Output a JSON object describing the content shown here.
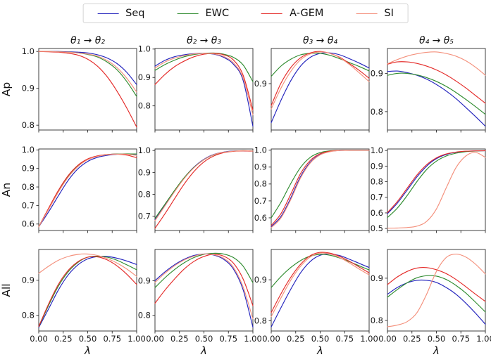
{
  "legend": {
    "items": [
      {
        "label": "Seq",
        "color": "#2323bd"
      },
      {
        "label": "EWC",
        "color": "#2e8b2e"
      },
      {
        "label": "A-GEM",
        "color": "#e42a28"
      },
      {
        "label": "SI",
        "color": "#f4907c"
      }
    ]
  },
  "chart_data": {
    "type": "line",
    "layout": "3 rows x 4 columns of subplots, shared legend on top",
    "x": [
      0,
      0.1,
      0.2,
      0.3,
      0.4,
      0.5,
      0.6,
      0.7,
      0.8,
      0.9,
      1.0
    ],
    "xticks": [
      0,
      0.25,
      0.5,
      0.75,
      1.0
    ],
    "xtick_labels": [
      "0.00",
      "0.25",
      "0.50",
      "0.75",
      "1.00"
    ],
    "xlabel": "λ",
    "row_labels": [
      "Ap",
      "An",
      "All"
    ],
    "col_titles": [
      "θ₁ → θ₂",
      "θ₂ → θ₃",
      "θ₃ → θ₄",
      "θ₄ → θ₅"
    ],
    "series_names": [
      "Seq",
      "EWC",
      "A-GEM",
      "SI"
    ],
    "subplots": [
      {
        "row": "Ap",
        "col": "θ₁ → θ₂",
        "ylim": [
          0.787,
          1.008
        ],
        "yticks": [
          0.8,
          0.9,
          1.0
        ],
        "series": {
          "Seq": [
            1.0,
            1.0,
            1.0,
            0.999,
            0.998,
            0.996,
            0.991,
            0.982,
            0.967,
            0.943,
            0.91
          ],
          "EWC": [
            1.0,
            1.0,
            0.999,
            0.998,
            0.996,
            0.992,
            0.985,
            0.971,
            0.95,
            0.918,
            0.878
          ],
          "A-GEM": [
            1.0,
            0.999,
            0.998,
            0.995,
            0.99,
            0.979,
            0.96,
            0.931,
            0.892,
            0.846,
            0.795
          ],
          "SI": [
            1.0,
            1.0,
            0.999,
            0.998,
            0.996,
            0.993,
            0.987,
            0.975,
            0.956,
            0.927,
            0.89
          ]
        }
      },
      {
        "row": "Ap",
        "col": "θ₂ → θ₃",
        "ylim": [
          0.715,
          1.002
        ],
        "yticks": [
          0.8,
          0.9,
          1.0
        ],
        "series": {
          "Seq": [
            0.94,
            0.96,
            0.973,
            0.98,
            0.984,
            0.985,
            0.982,
            0.971,
            0.947,
            0.89,
            0.728
          ],
          "EWC": [
            0.925,
            0.945,
            0.961,
            0.973,
            0.981,
            0.985,
            0.986,
            0.982,
            0.971,
            0.944,
            0.885
          ],
          "A-GEM": [
            0.875,
            0.91,
            0.938,
            0.958,
            0.973,
            0.982,
            0.985,
            0.98,
            0.962,
            0.908,
            0.785
          ],
          "SI": [
            0.933,
            0.954,
            0.968,
            0.977,
            0.983,
            0.985,
            0.983,
            0.974,
            0.952,
            0.898,
            0.768
          ]
        }
      },
      {
        "row": "Ap",
        "col": "θ₃ → θ₄",
        "ylim": [
          0.805,
          0.972
        ],
        "yticks": [
          0.9
        ],
        "series": {
          "Seq": [
            0.82,
            0.866,
            0.906,
            0.936,
            0.954,
            0.962,
            0.963,
            0.959,
            0.951,
            0.942,
            0.932
          ],
          "EWC": [
            0.915,
            0.936,
            0.95,
            0.959,
            0.962,
            0.962,
            0.958,
            0.951,
            0.943,
            0.935,
            0.926
          ],
          "A-GEM": [
            0.855,
            0.901,
            0.933,
            0.953,
            0.963,
            0.966,
            0.962,
            0.954,
            0.941,
            0.927,
            0.911
          ],
          "SI": [
            0.848,
            0.891,
            0.925,
            0.949,
            0.961,
            0.965,
            0.962,
            0.953,
            0.939,
            0.922,
            0.904
          ]
        }
      },
      {
        "row": "Ap",
        "col": "θ₄ → θ₅",
        "ylim": [
          0.752,
          0.965
        ],
        "yticks": [
          0.8,
          0.9
        ],
        "series": {
          "Seq": [
            0.905,
            0.906,
            0.902,
            0.895,
            0.885,
            0.871,
            0.854,
            0.834,
            0.811,
            0.787,
            0.762
          ],
          "EWC": [
            0.895,
            0.9,
            0.9,
            0.896,
            0.889,
            0.879,
            0.866,
            0.85,
            0.832,
            0.813,
            0.793
          ],
          "A-GEM": [
            0.924,
            0.93,
            0.93,
            0.926,
            0.919,
            0.909,
            0.896,
            0.88,
            0.862,
            0.842,
            0.822
          ],
          "SI": [
            0.925,
            0.936,
            0.945,
            0.951,
            0.955,
            0.956,
            0.952,
            0.945,
            0.933,
            0.916,
            0.895
          ]
        }
      },
      {
        "row": "An",
        "col": "θ₁ → θ₂",
        "ylim": [
          0.565,
          1.005
        ],
        "yticks": [
          0.6,
          0.7,
          0.8,
          0.9,
          1.0
        ],
        "series": {
          "Seq": [
            0.585,
            0.665,
            0.752,
            0.835,
            0.898,
            0.938,
            0.96,
            0.971,
            0.976,
            0.978,
            0.977
          ],
          "EWC": [
            0.585,
            0.683,
            0.778,
            0.858,
            0.915,
            0.95,
            0.967,
            0.975,
            0.978,
            0.979,
            0.978
          ],
          "A-GEM": [
            0.585,
            0.685,
            0.781,
            0.861,
            0.917,
            0.951,
            0.968,
            0.975,
            0.977,
            0.972,
            0.958
          ],
          "SI": [
            0.585,
            0.678,
            0.772,
            0.852,
            0.91,
            0.947,
            0.965,
            0.974,
            0.977,
            0.977,
            0.97
          ]
        }
      },
      {
        "row": "An",
        "col": "θ₂ → θ₃",
        "ylim": [
          0.635,
          1.007
        ],
        "yticks": [
          0.7,
          0.8,
          0.9,
          1.0
        ],
        "series": {
          "Seq": [
            0.685,
            0.75,
            0.815,
            0.876,
            0.925,
            0.96,
            0.982,
            0.993,
            0.998,
            0.999,
            0.998
          ],
          "EWC": [
            0.69,
            0.754,
            0.818,
            0.877,
            0.924,
            0.958,
            0.98,
            0.992,
            0.997,
            0.999,
            0.998
          ],
          "A-GEM": [
            0.645,
            0.71,
            0.78,
            0.848,
            0.905,
            0.948,
            0.975,
            0.99,
            0.996,
            0.998,
            0.997
          ],
          "SI": [
            0.68,
            0.746,
            0.812,
            0.873,
            0.922,
            0.958,
            0.981,
            0.992,
            0.997,
            0.999,
            0.998
          ]
        }
      },
      {
        "row": "An",
        "col": "θ₃ → θ₄",
        "ylim": [
          0.525,
          1.007
        ],
        "yticks": [
          0.6,
          0.7,
          0.8,
          0.9,
          1.0
        ],
        "series": {
          "Seq": [
            0.548,
            0.608,
            0.718,
            0.845,
            0.93,
            0.974,
            0.992,
            0.998,
            1.0,
            1.0,
            1.0
          ],
          "EWC": [
            0.6,
            0.693,
            0.803,
            0.898,
            0.958,
            0.986,
            0.996,
            0.999,
            1.0,
            1.0,
            1.0
          ],
          "A-GEM": [
            0.555,
            0.625,
            0.74,
            0.862,
            0.94,
            0.979,
            0.994,
            0.999,
            1.0,
            1.0,
            1.0
          ],
          "SI": [
            0.542,
            0.6,
            0.708,
            0.836,
            0.925,
            0.972,
            0.991,
            0.998,
            1.0,
            1.0,
            1.0
          ]
        }
      },
      {
        "row": "An",
        "col": "θ₄ → θ₅",
        "ylim": [
          0.487,
          1.01
        ],
        "yticks": [
          0.5,
          0.6,
          0.7,
          0.8,
          0.9,
          1.0
        ],
        "series": {
          "Seq": [
            0.595,
            0.662,
            0.745,
            0.83,
            0.9,
            0.948,
            0.975,
            0.989,
            0.995,
            0.998,
            0.999
          ],
          "EWC": [
            0.57,
            0.63,
            0.71,
            0.8,
            0.878,
            0.932,
            0.965,
            0.983,
            0.993,
            0.997,
            0.999
          ],
          "A-GEM": [
            0.602,
            0.672,
            0.757,
            0.842,
            0.909,
            0.953,
            0.978,
            0.99,
            0.996,
            0.998,
            0.999
          ],
          "SI": [
            0.502,
            0.503,
            0.506,
            0.515,
            0.545,
            0.625,
            0.76,
            0.89,
            0.965,
            0.988,
            0.956
          ]
        }
      },
      {
        "row": "All",
        "col": "θ₁ → θ₂",
        "ylim": [
          0.755,
          0.988
        ],
        "yticks": [
          0.8,
          0.9
        ],
        "series": {
          "Seq": [
            0.765,
            0.818,
            0.872,
            0.915,
            0.944,
            0.961,
            0.968,
            0.968,
            0.963,
            0.955,
            0.945
          ],
          "EWC": [
            0.767,
            0.828,
            0.883,
            0.924,
            0.951,
            0.966,
            0.969,
            0.966,
            0.957,
            0.944,
            0.93
          ],
          "A-GEM": [
            0.768,
            0.832,
            0.888,
            0.928,
            0.953,
            0.966,
            0.967,
            0.958,
            0.941,
            0.917,
            0.888
          ],
          "SI": [
            0.92,
            0.94,
            0.957,
            0.968,
            0.974,
            0.975,
            0.971,
            0.962,
            0.949,
            0.932,
            0.911
          ]
        }
      },
      {
        "row": "All",
        "col": "θ₂ → θ₃",
        "ylim": [
          0.755,
          0.99
        ],
        "yticks": [
          0.8,
          0.9
        ],
        "series": {
          "Seq": [
            0.9,
            0.925,
            0.946,
            0.962,
            0.973,
            0.977,
            0.974,
            0.962,
            0.934,
            0.874,
            0.766
          ],
          "EWC": [
            0.88,
            0.908,
            0.932,
            0.952,
            0.967,
            0.976,
            0.979,
            0.977,
            0.967,
            0.942,
            0.894
          ],
          "A-GEM": [
            0.835,
            0.872,
            0.905,
            0.934,
            0.956,
            0.97,
            0.976,
            0.971,
            0.951,
            0.905,
            0.828
          ],
          "SI": [
            0.895,
            0.921,
            0.943,
            0.96,
            0.971,
            0.977,
            0.975,
            0.965,
            0.939,
            0.882,
            0.79
          ]
        }
      },
      {
        "row": "All",
        "col": "θ₃ → θ₄",
        "ylim": [
          0.775,
          0.974
        ],
        "yticks": [
          0.8,
          0.9
        ],
        "series": {
          "Seq": [
            0.785,
            0.832,
            0.877,
            0.917,
            0.945,
            0.96,
            0.963,
            0.959,
            0.95,
            0.94,
            0.93
          ],
          "EWC": [
            0.881,
            0.908,
            0.93,
            0.947,
            0.958,
            0.962,
            0.96,
            0.953,
            0.944,
            0.934,
            0.924
          ],
          "A-GEM": [
            0.82,
            0.866,
            0.906,
            0.938,
            0.959,
            0.967,
            0.965,
            0.957,
            0.945,
            0.931,
            0.917
          ],
          "SI": [
            0.81,
            0.856,
            0.899,
            0.933,
            0.956,
            0.965,
            0.963,
            0.954,
            0.941,
            0.926,
            0.912
          ]
        }
      },
      {
        "row": "All",
        "col": "θ₄ → θ₅",
        "ylim": [
          0.775,
          0.968
        ],
        "yticks": [
          0.8,
          0.9
        ],
        "series": {
          "Seq": [
            0.862,
            0.878,
            0.889,
            0.895,
            0.895,
            0.89,
            0.878,
            0.862,
            0.841,
            0.817,
            0.791
          ],
          "EWC": [
            0.855,
            0.873,
            0.889,
            0.901,
            0.906,
            0.905,
            0.897,
            0.883,
            0.865,
            0.843,
            0.82
          ],
          "A-GEM": [
            0.885,
            0.903,
            0.916,
            0.924,
            0.925,
            0.92,
            0.911,
            0.897,
            0.88,
            0.862,
            0.845
          ],
          "SI": [
            0.785,
            0.789,
            0.797,
            0.818,
            0.862,
            0.916,
            0.949,
            0.957,
            0.95,
            0.933,
            0.91
          ]
        }
      }
    ]
  }
}
